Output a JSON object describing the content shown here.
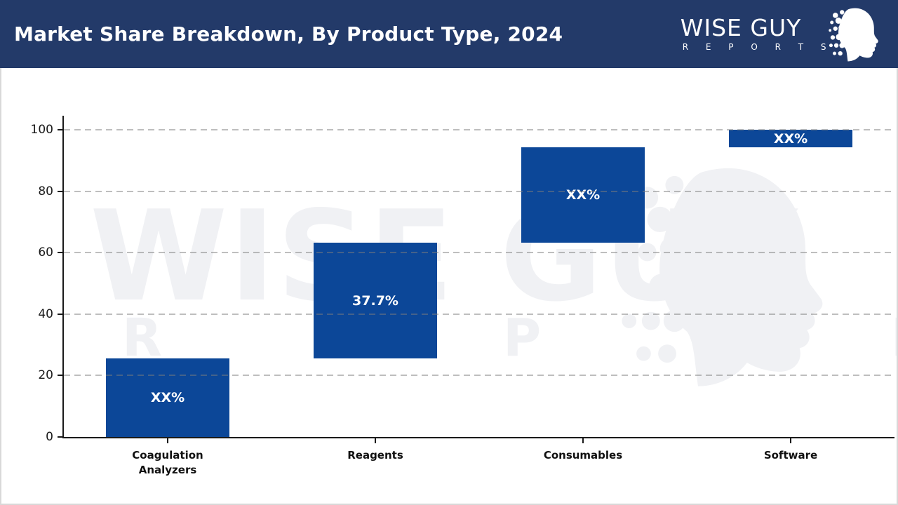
{
  "header": {
    "title": "Market Share Breakdown, By Product Type, 2024",
    "logo": {
      "line1": "WISE GUY",
      "line2": "R E P O R T S"
    },
    "bg_color": "#233a69"
  },
  "watermark": {
    "line1": "WISE GUY",
    "line2": "R E P O R T S"
  },
  "chart_data": {
    "type": "bar",
    "subtype": "waterfall-floating-bars",
    "title": "Market Share Breakdown, By Product Type, 2024",
    "categories": [
      "Coagulation Analyzers",
      "Reagents",
      "Consumables",
      "Software"
    ],
    "segments": [
      {
        "category": "Coagulation Analyzers",
        "start": 0,
        "end": 25.5,
        "value": 25.5,
        "label": "XX%"
      },
      {
        "category": "Reagents",
        "start": 25.5,
        "end": 63.2,
        "value": 37.7,
        "label": "37.7%"
      },
      {
        "category": "Consumables",
        "start": 63.2,
        "end": 94.2,
        "value": 31.0,
        "label": "XX%"
      },
      {
        "category": "Software",
        "start": 94.2,
        "end": 100,
        "value": 5.8,
        "label": "XX%"
      }
    ],
    "xlabel": "",
    "ylabel": "",
    "ylim": [
      0,
      105
    ],
    "yticks": [
      0,
      20,
      40,
      60,
      80,
      100
    ],
    "grid": "horizontal-dashed, drawn over bars",
    "legend": "none",
    "colors": {
      "bar": "#0c4798",
      "bar_label": "#ffffff",
      "axis": "#1a1a1a",
      "grid": "#7d7d7d",
      "header_bg": "#233a69",
      "watermark": "#f0f1f4",
      "card_border": "#d9d9d9"
    }
  }
}
